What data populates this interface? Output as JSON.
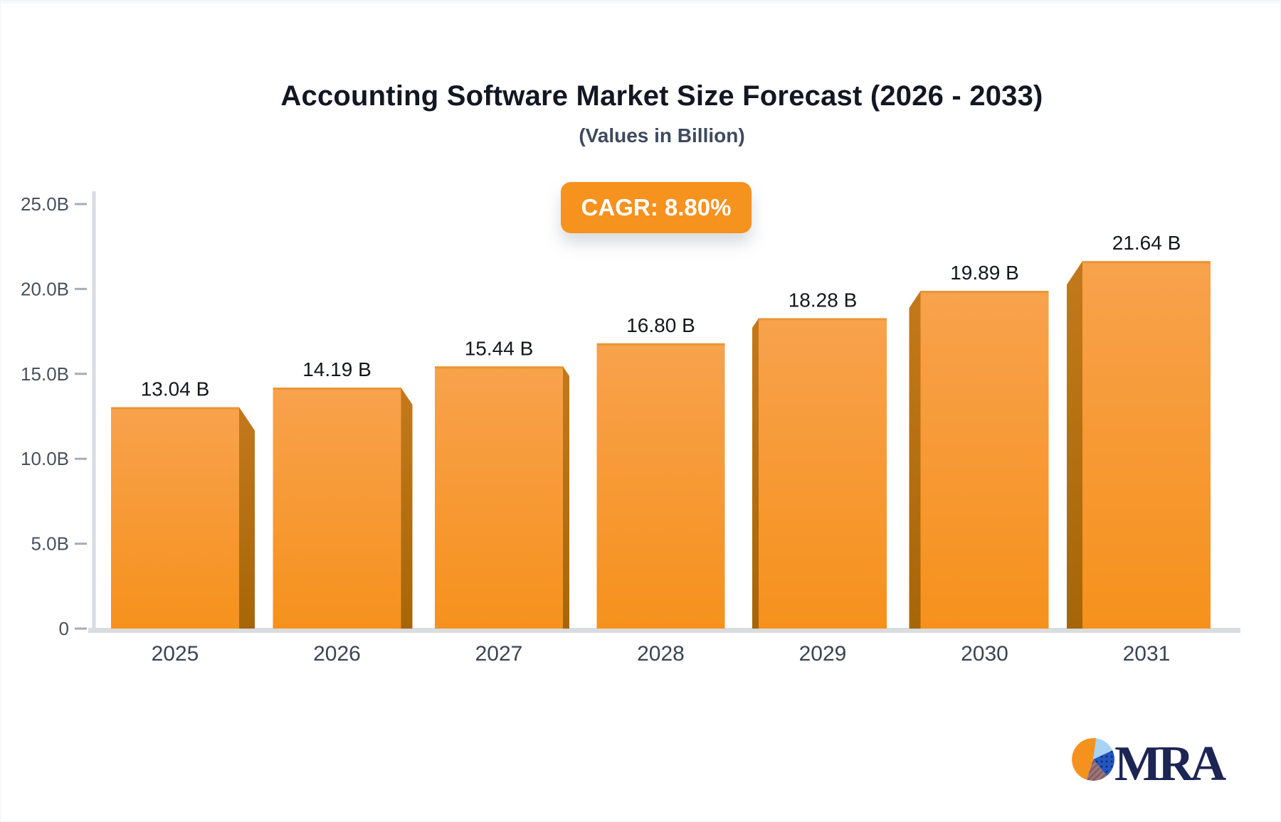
{
  "chart_data": {
    "type": "bar",
    "title": "Accounting Software Market Size Forecast (2026 - 2033)",
    "subtitle": "(Values in Billion)",
    "annotation": "CAGR: 8.80%",
    "categories": [
      "2025",
      "2026",
      "2027",
      "2028",
      "2029",
      "2030",
      "2031"
    ],
    "values": [
      13.04,
      14.19,
      15.44,
      16.8,
      18.28,
      19.89,
      21.64
    ],
    "value_labels": [
      "13.04 B",
      "14.19 B",
      "15.44 B",
      "16.80 B",
      "18.28 B",
      "19.89 B",
      "21.64 B"
    ],
    "unit": "B",
    "ylim": [
      0,
      25
    ],
    "ytick_values": [
      25,
      20,
      15,
      10,
      5,
      0
    ],
    "ytick_labels": [
      "25.0B",
      "20.0B",
      "15.0B",
      "10.0B",
      "5.0B",
      "0"
    ],
    "grid": false,
    "legend": false,
    "colors": {
      "bar_front_top": "#F8A24D",
      "bar_front_bottom": "#F6911C",
      "bar_side_top": "#C3791B",
      "bar_side_bottom": "#A66608",
      "bar_top_edge": "#E89434",
      "badge_background": "#F6921E",
      "badge_text": "#FFFFFF",
      "axis_line": "#D9DCE0",
      "tick_dash": "#A6ADB8",
      "ytick_text": "#49505E",
      "xtick_text": "#3B4454",
      "value_label_text": "#14171C",
      "title_text": "#131722",
      "subtitle_text": "#3E4A5C"
    }
  },
  "logo": {
    "text": "MRA",
    "pie_colors": {
      "orange": "#F5921E",
      "light_blue": "#A9D3F2",
      "dark_blue": "#2456C0",
      "mauve": "#9C7578",
      "text_navy": "#1C2553"
    }
  }
}
